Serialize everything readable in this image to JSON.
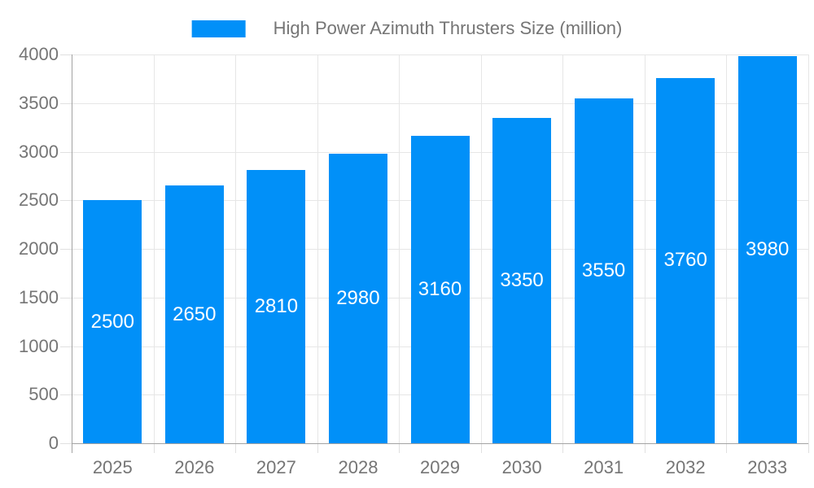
{
  "chart_data": {
    "type": "bar",
    "title": "High Power Azimuth Thrusters Size (million)",
    "legend_position": "top",
    "categories": [
      "2025",
      "2026",
      "2027",
      "2028",
      "2029",
      "2030",
      "2031",
      "2032",
      "2033"
    ],
    "series": [
      {
        "name": "High Power Azimuth Thrusters Size (million)",
        "values": [
          2500,
          2650,
          2810,
          2980,
          3160,
          3350,
          3550,
          3760,
          3980
        ]
      }
    ],
    "value_labels_shown": true,
    "xlabel": "",
    "ylabel": "",
    "ylim": [
      0,
      4000
    ],
    "yticks": [
      0,
      500,
      1000,
      1500,
      2000,
      2500,
      3000,
      3500,
      4000
    ],
    "grid": true,
    "colors": {
      "bar": "#0190f8",
      "axis_text": "#757575",
      "gridline": "#e6e6e6",
      "axis_line": "#a3a3a3",
      "bar_label_text": "#ffffff",
      "background": "#ffffff"
    }
  }
}
